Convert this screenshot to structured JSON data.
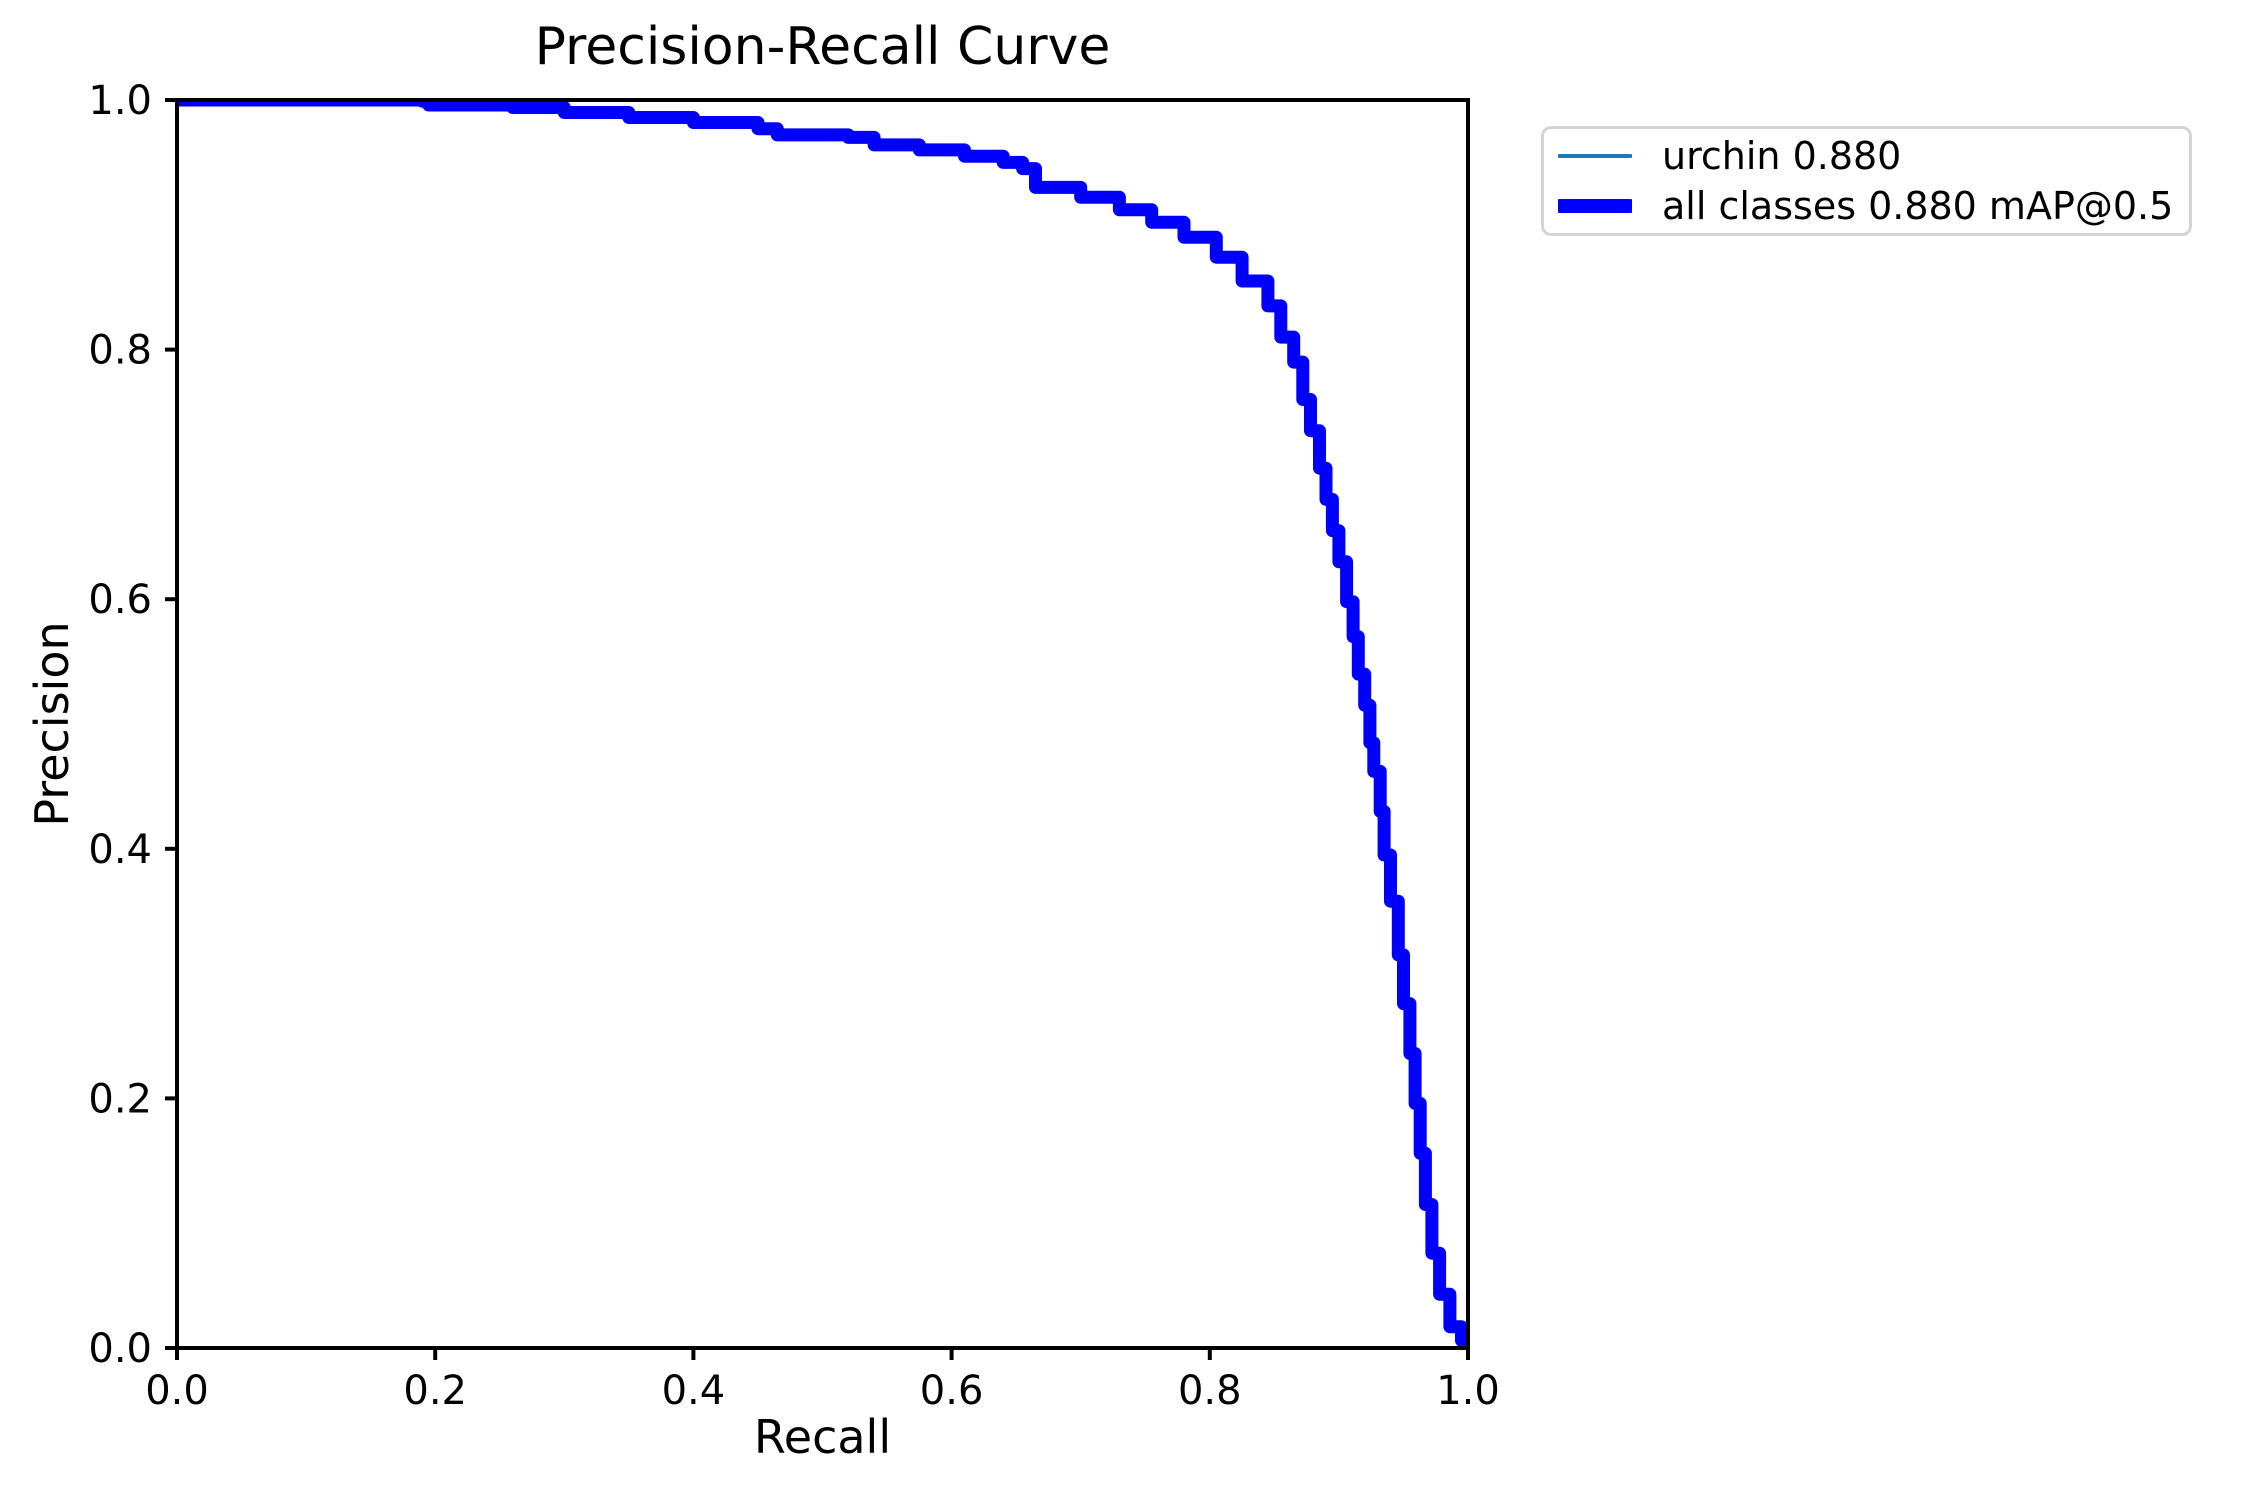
{
  "chart_data": {
    "type": "line",
    "title": "Precision-Recall Curve",
    "xlabel": "Recall",
    "ylabel": "Precision",
    "xlim": [
      0.0,
      1.0
    ],
    "ylim": [
      0.0,
      1.0
    ],
    "xticks": [
      0.0,
      0.2,
      0.4,
      0.6,
      0.8,
      1.0
    ],
    "yticks": [
      0.0,
      0.2,
      0.4,
      0.6,
      0.8,
      1.0
    ],
    "xtick_labels": [
      "0.0",
      "0.2",
      "0.4",
      "0.6",
      "0.8",
      "1.0"
    ],
    "ytick_labels": [
      "0.0",
      "0.2",
      "0.4",
      "0.6",
      "0.8",
      "1.0"
    ],
    "grid": false,
    "background_color": "#ffffff",
    "axis_color": "#000000",
    "legend": {
      "position": "outside-upper-right",
      "border_color": "#d4d4d4",
      "items": [
        {
          "label": "urchin 0.880",
          "color": "#1f77b4",
          "line_width": 3
        },
        {
          "label": "all classes 0.880 mAP@0.5",
          "color": "#0000ff",
          "line_width": 13
        }
      ]
    },
    "points_note": "both series coincide; shared recall/precision step points",
    "points": [
      [
        0.0,
        1.0
      ],
      [
        0.19,
        0.999
      ],
      [
        0.195,
        0.996
      ],
      [
        0.26,
        0.994
      ],
      [
        0.3,
        0.99
      ],
      [
        0.35,
        0.986
      ],
      [
        0.4,
        0.982
      ],
      [
        0.45,
        0.977
      ],
      [
        0.465,
        0.972
      ],
      [
        0.52,
        0.97
      ],
      [
        0.54,
        0.964
      ],
      [
        0.575,
        0.96
      ],
      [
        0.61,
        0.955
      ],
      [
        0.64,
        0.95
      ],
      [
        0.655,
        0.945
      ],
      [
        0.665,
        0.93
      ],
      [
        0.7,
        0.922
      ],
      [
        0.73,
        0.912
      ],
      [
        0.755,
        0.902
      ],
      [
        0.78,
        0.89
      ],
      [
        0.805,
        0.874
      ],
      [
        0.825,
        0.855
      ],
      [
        0.845,
        0.835
      ],
      [
        0.855,
        0.81
      ],
      [
        0.865,
        0.79
      ],
      [
        0.872,
        0.76
      ],
      [
        0.878,
        0.735
      ],
      [
        0.885,
        0.705
      ],
      [
        0.89,
        0.68
      ],
      [
        0.895,
        0.655
      ],
      [
        0.9,
        0.63
      ],
      [
        0.906,
        0.598
      ],
      [
        0.911,
        0.57
      ],
      [
        0.915,
        0.54
      ],
      [
        0.92,
        0.515
      ],
      [
        0.924,
        0.485
      ],
      [
        0.927,
        0.462
      ],
      [
        0.932,
        0.43
      ],
      [
        0.935,
        0.395
      ],
      [
        0.94,
        0.358
      ],
      [
        0.946,
        0.315
      ],
      [
        0.95,
        0.276
      ],
      [
        0.955,
        0.236
      ],
      [
        0.959,
        0.196
      ],
      [
        0.963,
        0.156
      ],
      [
        0.967,
        0.115
      ],
      [
        0.972,
        0.076
      ],
      [
        0.978,
        0.043
      ],
      [
        0.986,
        0.017
      ],
      [
        0.995,
        0.006
      ],
      [
        1.0,
        0.0
      ]
    ],
    "series": [
      {
        "name": "urchin",
        "value": "0.880",
        "color": "#1f77b4",
        "stroke_px": 3
      },
      {
        "name": "all classes",
        "value": "0.880 mAP@0.5",
        "color": "#0000ff",
        "stroke_px": 13
      }
    ]
  }
}
